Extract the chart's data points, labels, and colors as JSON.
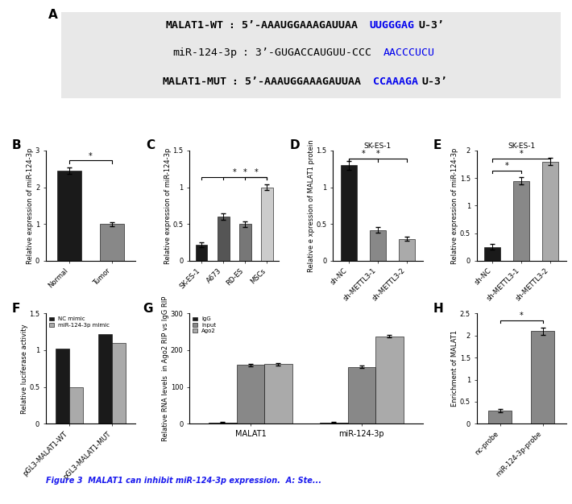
{
  "panel_A": {
    "lines": [
      {
        "parts": [
          {
            "text": "MALAT1-WT",
            "bold": true,
            "color": "black"
          },
          {
            "text": ": 5’-AAAUGGAAAGAUUAA",
            "bold": true,
            "color": "black"
          },
          {
            "text": "UUGGGAG",
            "bold": true,
            "color": "#0000ee"
          },
          {
            "text": "U-3’",
            "bold": true,
            "color": "black"
          }
        ]
      },
      {
        "parts": [
          {
            "text": "miR-124-3p",
            "bold": false,
            "color": "black"
          },
          {
            "text": ": 3’-GUGACCAUGUU-CCC",
            "bold": false,
            "color": "black"
          },
          {
            "text": "AACCCUCU",
            "bold": false,
            "color": "#0000ee"
          },
          {
            "text": "",
            "bold": false,
            "color": "black"
          }
        ]
      },
      {
        "parts": [
          {
            "text": "MALAT1-MUT",
            "bold": true,
            "color": "black"
          },
          {
            "text": ": 5’-AAAUGGAAAGAUUAA",
            "bold": true,
            "color": "black"
          },
          {
            "text": "CCAAAGA",
            "bold": true,
            "color": "#0000ee"
          },
          {
            "text": "U-3’",
            "bold": true,
            "color": "black"
          }
        ]
      }
    ],
    "bg_color": "#e8e8e8"
  },
  "panel_B": {
    "categories": [
      "Normal",
      "Tumor"
    ],
    "values": [
      2.45,
      1.0
    ],
    "errors": [
      0.08,
      0.05
    ],
    "colors": [
      "#1a1a1a",
      "#888888"
    ],
    "ylabel": "Relative expression of miR-124-3p",
    "ylim": [
      0,
      3
    ],
    "yticks": [
      0,
      1,
      2,
      3
    ],
    "sig_pairs": [
      [
        [
          0,
          1
        ],
        "*"
      ]
    ]
  },
  "panel_C": {
    "categories": [
      "SK-ES-1",
      "A673",
      "RD-ES",
      "MSCs"
    ],
    "values": [
      0.22,
      0.6,
      0.5,
      1.0
    ],
    "errors": [
      0.03,
      0.04,
      0.04,
      0.04
    ],
    "colors": [
      "#1a1a1a",
      "#555555",
      "#777777",
      "#cccccc"
    ],
    "ylabel": "Relative expression of miR-124-3p",
    "ylim": [
      0,
      1.5
    ],
    "yticks": [
      0.0,
      0.5,
      1.0,
      1.5
    ],
    "sig_pairs": [
      [
        [
          0,
          3
        ],
        "*"
      ],
      [
        [
          1,
          3
        ],
        "*"
      ],
      [
        [
          2,
          3
        ],
        "*"
      ]
    ]
  },
  "panel_D": {
    "title": "SK-ES-1",
    "categories": [
      "sh-NC",
      "sh-METTL3-1",
      "sh-METTL3-2"
    ],
    "values": [
      1.3,
      0.42,
      0.3
    ],
    "errors": [
      0.06,
      0.04,
      0.03
    ],
    "colors": [
      "#1a1a1a",
      "#888888",
      "#aaaaaa"
    ],
    "ylabel": "Relative e xpression of MALAT1 protein",
    "ylim": [
      0,
      1.5
    ],
    "yticks": [
      0.0,
      0.5,
      1.0,
      1.5
    ],
    "sig_pairs": [
      [
        [
          0,
          1
        ],
        "*"
      ],
      [
        [
          0,
          2
        ],
        "*"
      ]
    ]
  },
  "panel_E": {
    "title": "SK-ES-1",
    "categories": [
      "sh-NC",
      "sh-METTL3-1",
      "sh-METTL3-2"
    ],
    "values": [
      0.25,
      1.45,
      1.8
    ],
    "errors": [
      0.05,
      0.06,
      0.06
    ],
    "colors": [
      "#1a1a1a",
      "#888888",
      "#aaaaaa"
    ],
    "ylabel": "Relative expression of miR-124-3p",
    "ylim": [
      0,
      2.0
    ],
    "yticks": [
      0.0,
      0.5,
      1.0,
      1.5,
      2.0
    ],
    "sig_pairs": [
      [
        [
          0,
          1
        ],
        "*"
      ],
      [
        [
          0,
          2
        ],
        "*"
      ]
    ]
  },
  "panel_F": {
    "groups": [
      "pGL3-MALAT1-WT",
      "pGL3-MALAT1-MUT"
    ],
    "series": [
      {
        "name": "NC mimic",
        "color": "#1a1a1a",
        "values": [
          1.02,
          1.22
        ]
      },
      {
        "name": "miR-124-3p mimic",
        "color": "#aaaaaa",
        "values": [
          0.5,
          1.1
        ]
      }
    ],
    "ylabel": "Relative luciferase activity",
    "ylim": [
      0,
      1.5
    ],
    "yticks": [
      0.0,
      0.5,
      1.0,
      1.5
    ]
  },
  "panel_G": {
    "groups": [
      "MALAT1",
      "miR-124-3p"
    ],
    "series": [
      {
        "name": "IgG",
        "color": "#1a1a1a",
        "values": [
          4,
          4
        ],
        "errors": [
          1,
          1
        ]
      },
      {
        "name": "input",
        "color": "#888888",
        "values": [
          160,
          155
        ],
        "errors": [
          3,
          3
        ]
      },
      {
        "name": "Ago2",
        "color": "#aaaaaa",
        "values": [
          162,
          238
        ],
        "errors": [
          3,
          3
        ]
      }
    ],
    "ylabel": "Relative RNA levels  in Ago2 RIP vs IgG RIP",
    "ylim": [
      0,
      300
    ],
    "yticks": [
      0,
      100,
      200,
      300
    ]
  },
  "panel_H": {
    "categories": [
      "nc-probe",
      "miR-124-3p-probe"
    ],
    "values": [
      0.3,
      2.1
    ],
    "errors": [
      0.04,
      0.08
    ],
    "colors": [
      "#888888",
      "#888888"
    ],
    "ylabel": "Enrichment of MALAT1",
    "ylim": [
      0,
      2.5
    ],
    "yticks": [
      0.0,
      0.5,
      1.0,
      1.5,
      2.0,
      2.5
    ],
    "sig_pairs": [
      [
        [
          0,
          1
        ],
        "*"
      ]
    ]
  },
  "figure_label_fontsize": 11,
  "axis_label_fontsize": 6.0,
  "tick_fontsize": 6,
  "caption": "Figure 3  MALAT1 can inhibit miR-124-3p expression.  A: Ste..."
}
